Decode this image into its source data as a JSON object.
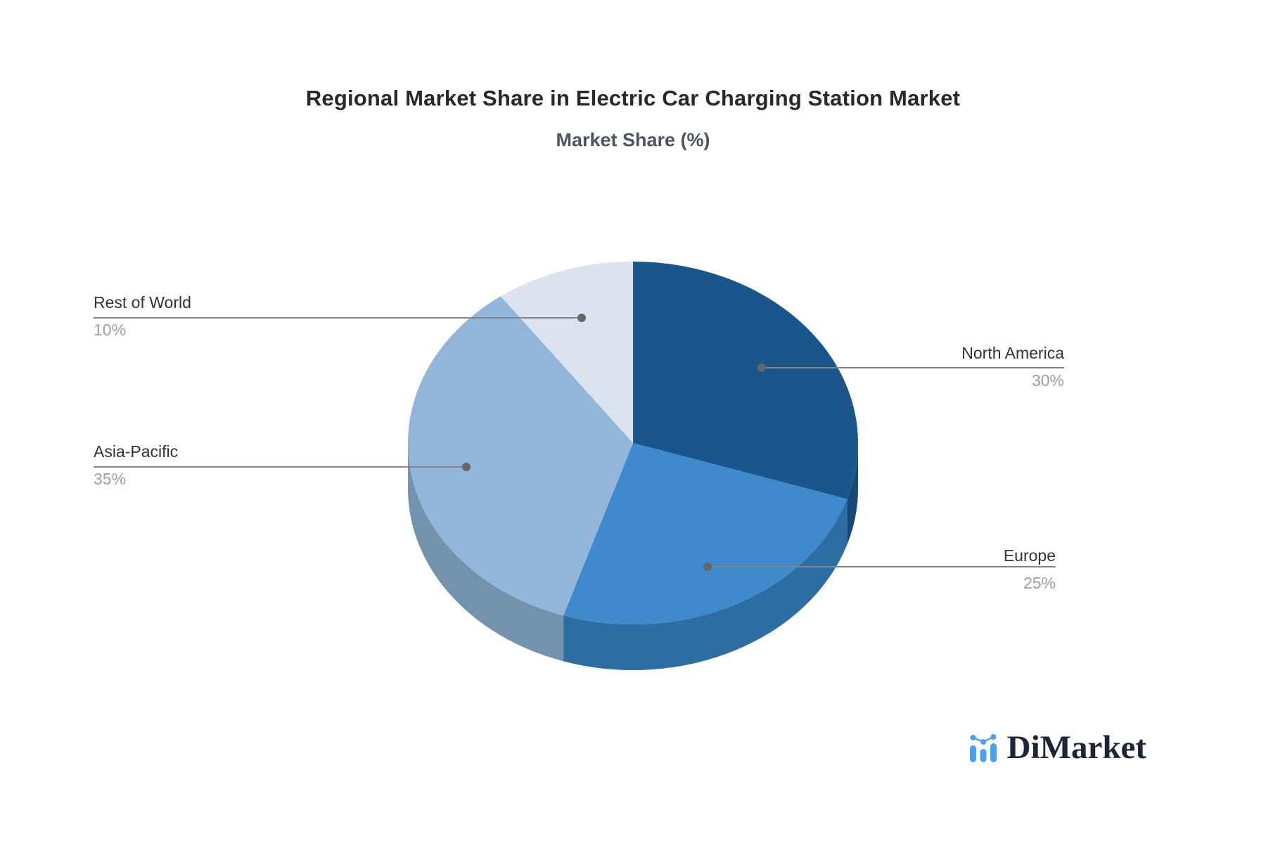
{
  "header": {
    "title": "Regional Market Share in Electric Car Charging Station Market",
    "subtitle": "Market Share (%)"
  },
  "chart_data": {
    "type": "pie",
    "style": "3d",
    "title": "Regional Market Share in Electric Car Charging Station Market",
    "subtitle": "Market Share (%)",
    "unit": "%",
    "direction": "clockwise",
    "start_angle_deg": 0,
    "legend_position": "none",
    "label_style": "leader-line-callouts",
    "slices": [
      {
        "label": "North America",
        "value": 30,
        "color": "#1A568C",
        "side_color": "#17497A"
      },
      {
        "label": "Europe",
        "value": 25,
        "color": "#3E8ACD",
        "side_color": "#2C6DA4"
      },
      {
        "label": "Asia-Pacific",
        "value": 35,
        "color": "#92B5DA",
        "side_color": "#7392AE"
      },
      {
        "label": "Rest of World",
        "value": 10,
        "color": "#DCE3EE",
        "side_color": "#B3BFD0"
      }
    ]
  },
  "callouts": [
    {
      "name": "North America",
      "value_text": "30%",
      "side": "right"
    },
    {
      "name": "Europe",
      "value_text": "25%",
      "side": "right"
    },
    {
      "name": "Asia-Pacific",
      "value_text": "35%",
      "side": "left"
    },
    {
      "name": "Rest of World",
      "value_text": "10%",
      "side": "left"
    }
  ],
  "brand": {
    "name": "DiMarket",
    "icon": "bar-chart-logo-icon",
    "icon_color": "#4AA0F2",
    "text_color": "#1B2638"
  },
  "colors": {
    "title": "#26282B",
    "subtitle": "#4A5563",
    "label": "#333333",
    "value": "#9E9E9E",
    "leader_line": "#858585",
    "leader_dot": "#666666",
    "background": "#FFFFFF"
  }
}
